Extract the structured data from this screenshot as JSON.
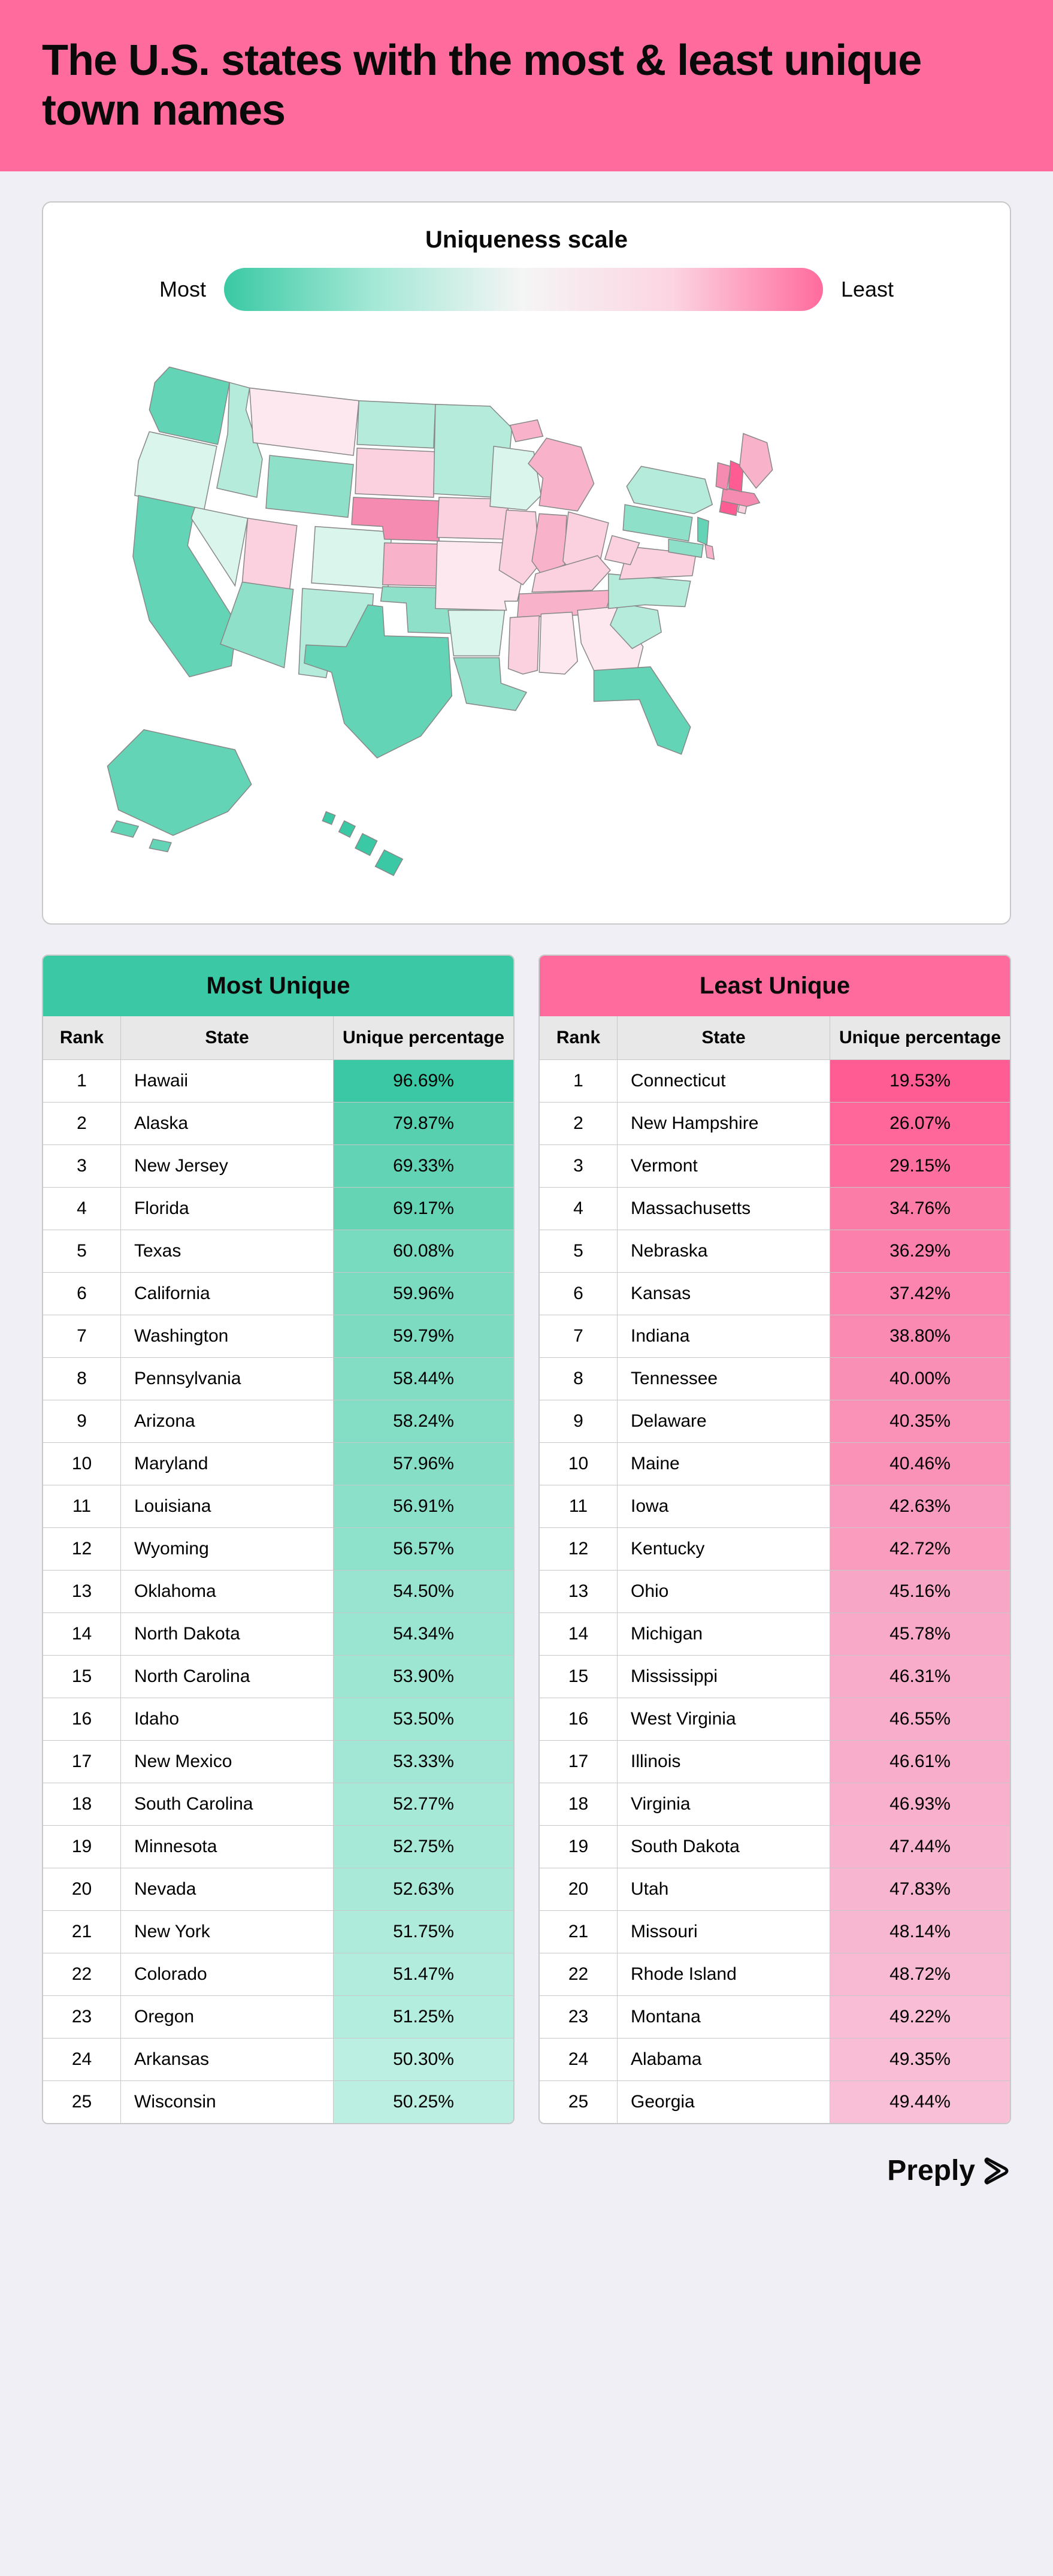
{
  "header": {
    "title": "The U.S. states with the most & least unique town names"
  },
  "scale": {
    "title": "Uniqueness scale",
    "most_label": "Most",
    "least_label": "Least",
    "gradient_stops": [
      "#3ac9a4",
      "#a4e8d6",
      "#f5f5f5",
      "#fcd4e2",
      "#ff6b9d"
    ]
  },
  "map": {
    "stroke": "#888888",
    "water": "#ffffff",
    "colors": {
      "c1": "#3ac9a4",
      "c2": "#64d4b6",
      "c3": "#8fe0c9",
      "c4": "#b4ebda",
      "c5": "#d9f5ec",
      "p5": "#fde8ef",
      "p4": "#fbd1e0",
      "p3": "#f8b3cb",
      "p2": "#f58bb0",
      "p1": "#ff5c93"
    },
    "state_colors": {
      "HI": "c1",
      "AK": "c2",
      "NJ": "c2",
      "FL": "c2",
      "TX": "c2",
      "CA": "c2",
      "WA": "c2",
      "PA": "c3",
      "AZ": "c3",
      "MD": "c3",
      "LA": "c3",
      "WY": "c3",
      "OK": "c3",
      "ND": "c4",
      "NC": "c4",
      "ID": "c4",
      "NM": "c4",
      "SC": "c4",
      "MN": "c4",
      "NV": "c5",
      "NY": "c4",
      "CO": "c5",
      "OR": "c5",
      "AR": "c5",
      "WI": "c5",
      "GA": "p5",
      "AL": "p5",
      "MT": "p5",
      "RI": "p4",
      "MO": "p5",
      "UT": "p4",
      "SD": "p4",
      "VA": "p4",
      "IL": "p4",
      "WV": "p4",
      "MS": "p4",
      "MI": "p3",
      "OH": "p4",
      "KY": "p4",
      "IA": "p4",
      "ME": "p3",
      "DE": "p3",
      "TN": "p3",
      "IN": "p3",
      "KS": "p3",
      "NE": "p2",
      "MA": "p2",
      "VT": "p2",
      "NH": "p1",
      "CT": "p1"
    }
  },
  "tables": {
    "most": {
      "title": "Most Unique",
      "title_bg": "#3ac9a4",
      "cols": {
        "rank": "Rank",
        "state": "State",
        "pct": "Unique percentage"
      },
      "rows": [
        {
          "rank": "1",
          "state": "Hawaii",
          "pct": "96.69%",
          "bg": "#3ac9a4"
        },
        {
          "rank": "2",
          "state": "Alaska",
          "pct": "79.87%",
          "bg": "#57d0af"
        },
        {
          "rank": "3",
          "state": "New Jersey",
          "pct": "69.33%",
          "bg": "#62d3b4"
        },
        {
          "rank": "4",
          "state": "Florida",
          "pct": "69.17%",
          "bg": "#65d4b5"
        },
        {
          "rank": "5",
          "state": "Texas",
          "pct": "60.08%",
          "bg": "#78dabf"
        },
        {
          "rank": "6",
          "state": "California",
          "pct": "59.96%",
          "bg": "#7adbc0"
        },
        {
          "rank": "7",
          "state": "Washington",
          "pct": "59.79%",
          "bg": "#7cdbc1"
        },
        {
          "rank": "8",
          "state": "Pennsylvania",
          "pct": "58.44%",
          "bg": "#82ddc4"
        },
        {
          "rank": "9",
          "state": "Arizona",
          "pct": "58.24%",
          "bg": "#84dec5"
        },
        {
          "rank": "10",
          "state": "Maryland",
          "pct": "57.96%",
          "bg": "#86dec6"
        },
        {
          "rank": "11",
          "state": "Louisiana",
          "pct": "56.91%",
          "bg": "#8be0c9"
        },
        {
          "rank": "12",
          "state": "Wyoming",
          "pct": "56.57%",
          "bg": "#8ee1ca"
        },
        {
          "rank": "13",
          "state": "Oklahoma",
          "pct": "54.50%",
          "bg": "#98e4d0"
        },
        {
          "rank": "14",
          "state": "North Dakota",
          "pct": "54.34%",
          "bg": "#9ae5d1"
        },
        {
          "rank": "15",
          "state": "North Carolina",
          "pct": "53.90%",
          "bg": "#9de6d2"
        },
        {
          "rank": "16",
          "state": "Idaho",
          "pct": "53.50%",
          "bg": "#a0e7d4"
        },
        {
          "rank": "17",
          "state": "New Mexico",
          "pct": "53.33%",
          "bg": "#a2e7d5"
        },
        {
          "rank": "18",
          "state": "South Carolina",
          "pct": "52.77%",
          "bg": "#a6e9d7"
        },
        {
          "rank": "19",
          "state": "Minnesota",
          "pct": "52.75%",
          "bg": "#a7e9d7"
        },
        {
          "rank": "20",
          "state": "Nevada",
          "pct": "52.63%",
          "bg": "#a8e9d8"
        },
        {
          "rank": "21",
          "state": "New York",
          "pct": "51.75%",
          "bg": "#aeebdb"
        },
        {
          "rank": "22",
          "state": "Colorado",
          "pct": "51.47%",
          "bg": "#b1ecdc"
        },
        {
          "rank": "23",
          "state": "Oregon",
          "pct": "51.25%",
          "bg": "#b3eddd"
        },
        {
          "rank": "24",
          "state": "Arkansas",
          "pct": "50.30%",
          "bg": "#baefe1"
        },
        {
          "rank": "25",
          "state": "Wisconsin",
          "pct": "50.25%",
          "bg": "#bbefe1"
        }
      ]
    },
    "least": {
      "title": "Least Unique",
      "title_bg": "#ff6b9d",
      "cols": {
        "rank": "Rank",
        "state": "State",
        "pct": "Unique percentage"
      },
      "rows": [
        {
          "rank": "1",
          "state": "Connecticut",
          "pct": "19.53%",
          "bg": "#ff5c93"
        },
        {
          "rank": "2",
          "state": "New Hampshire",
          "pct": "26.07%",
          "bg": "#ff6699"
        },
        {
          "rank": "3",
          "state": "Vermont",
          "pct": "29.15%",
          "bg": "#fe6e9e"
        },
        {
          "rank": "4",
          "state": "Massachusetts",
          "pct": "34.76%",
          "bg": "#fc7ca8"
        },
        {
          "rank": "5",
          "state": "Nebraska",
          "pct": "36.29%",
          "bg": "#fb81ac"
        },
        {
          "rank": "6",
          "state": "Kansas",
          "pct": "37.42%",
          "bg": "#fb85af"
        },
        {
          "rank": "7",
          "state": "Indiana",
          "pct": "38.80%",
          "bg": "#fa8ab2"
        },
        {
          "rank": "8",
          "state": "Tennessee",
          "pct": "40.00%",
          "bg": "#fa8fb6"
        },
        {
          "rank": "9",
          "state": "Delaware",
          "pct": "40.35%",
          "bg": "#fa91b7"
        },
        {
          "rank": "10",
          "state": "Maine",
          "pct": "40.46%",
          "bg": "#fa92b8"
        },
        {
          "rank": "11",
          "state": "Iowa",
          "pct": "42.63%",
          "bg": "#f99bbe"
        },
        {
          "rank": "12",
          "state": "Kentucky",
          "pct": "42.72%",
          "bg": "#f99cbe"
        },
        {
          "rank": "13",
          "state": "Ohio",
          "pct": "45.16%",
          "bg": "#f8a6c5"
        },
        {
          "rank": "14",
          "state": "Michigan",
          "pct": "45.78%",
          "bg": "#f8a9c7"
        },
        {
          "rank": "15",
          "state": "Mississippi",
          "pct": "46.31%",
          "bg": "#f8acc9"
        },
        {
          "rank": "16",
          "state": "West Virginia",
          "pct": "46.55%",
          "bg": "#f8adca"
        },
        {
          "rank": "17",
          "state": "Illinois",
          "pct": "46.61%",
          "bg": "#f8aeca"
        },
        {
          "rank": "18",
          "state": "Virginia",
          "pct": "46.93%",
          "bg": "#f8b0cc"
        },
        {
          "rank": "19",
          "state": "South Dakota",
          "pct": "47.44%",
          "bg": "#f8b3ce"
        },
        {
          "rank": "20",
          "state": "Utah",
          "pct": "47.83%",
          "bg": "#f8b5cf"
        },
        {
          "rank": "21",
          "state": "Missouri",
          "pct": "48.14%",
          "bg": "#f8b7d0"
        },
        {
          "rank": "22",
          "state": "Rhode Island",
          "pct": "48.72%",
          "bg": "#f8bad3"
        },
        {
          "rank": "23",
          "state": "Montana",
          "pct": "49.22%",
          "bg": "#f9bdd5"
        },
        {
          "rank": "24",
          "state": "Alabama",
          "pct": "49.35%",
          "bg": "#f9bed5"
        },
        {
          "rank": "25",
          "state": "Georgia",
          "pct": "49.44%",
          "bg": "#f9bfd6"
        }
      ]
    }
  },
  "footer": {
    "brand": "Preply"
  }
}
